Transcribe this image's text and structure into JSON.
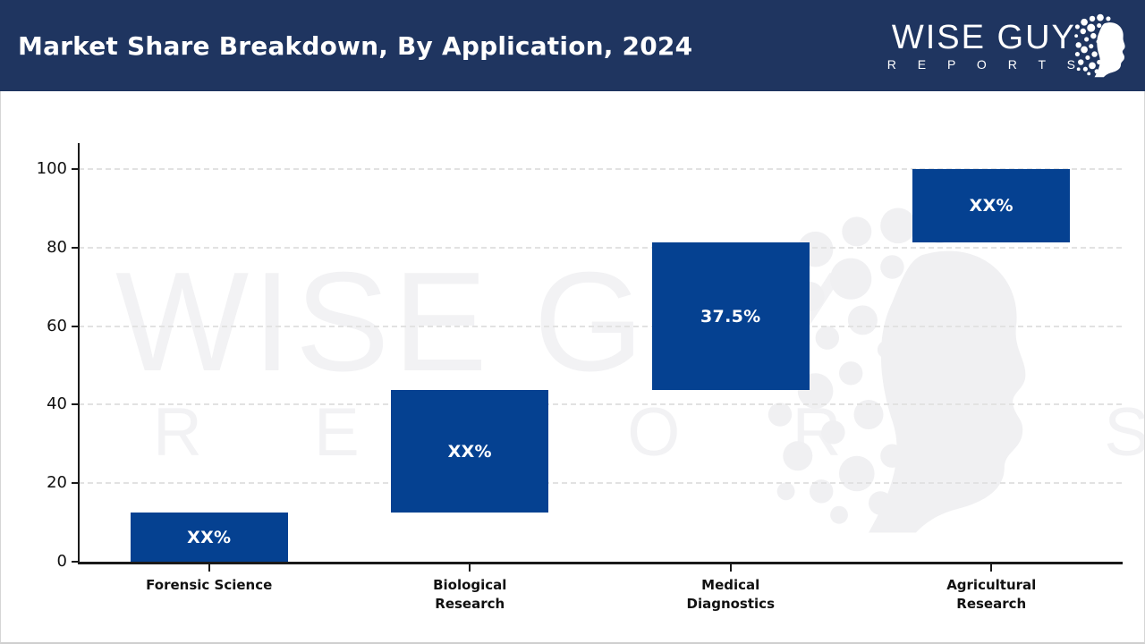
{
  "header": {
    "title": "Market Share Breakdown, By Application, 2024",
    "bg_color": "#1f3560",
    "logo": {
      "wordmark": "WISE GUY",
      "reports": "R E P O R T S"
    }
  },
  "watermark": {
    "wordmark": "WISE GUY",
    "reports": "R E P O R T S"
  },
  "chart_data": {
    "type": "bar",
    "subtype": "waterfall",
    "title": "Market Share Breakdown, By Application, 2024",
    "categories": [
      "Forensic Science",
      "Biological\nResearch",
      "Medical\nDiagnostics",
      "Agricultural\nResearch"
    ],
    "segments": [
      {
        "category": "Forensic Science",
        "start": 0,
        "end": 12.5,
        "value": 12.5,
        "label": "XX%"
      },
      {
        "category": "Biological Research",
        "start": 12.5,
        "end": 43.75,
        "value": 31.25,
        "label": "XX%"
      },
      {
        "category": "Medical Diagnostics",
        "start": 43.75,
        "end": 81.25,
        "value": 37.5,
        "label": "37.5%"
      },
      {
        "category": "Agricultural Research",
        "start": 81.25,
        "end": 100,
        "value": 18.75,
        "label": "XX%"
      }
    ],
    "bar_labels": [
      "XX%",
      "XX%",
      "37.5%",
      "XX%"
    ],
    "yticks": [
      0,
      20,
      40,
      60,
      80,
      100
    ],
    "ylim": [
      0,
      100
    ],
    "xlabel": "",
    "ylabel": "",
    "grid": "horizontal-dashed",
    "legend": "none",
    "bar_color": "#054191",
    "bar_label_color": "#ffffff",
    "axis_color": "#1a1a1a",
    "grid_color": "#e2e2e2"
  }
}
